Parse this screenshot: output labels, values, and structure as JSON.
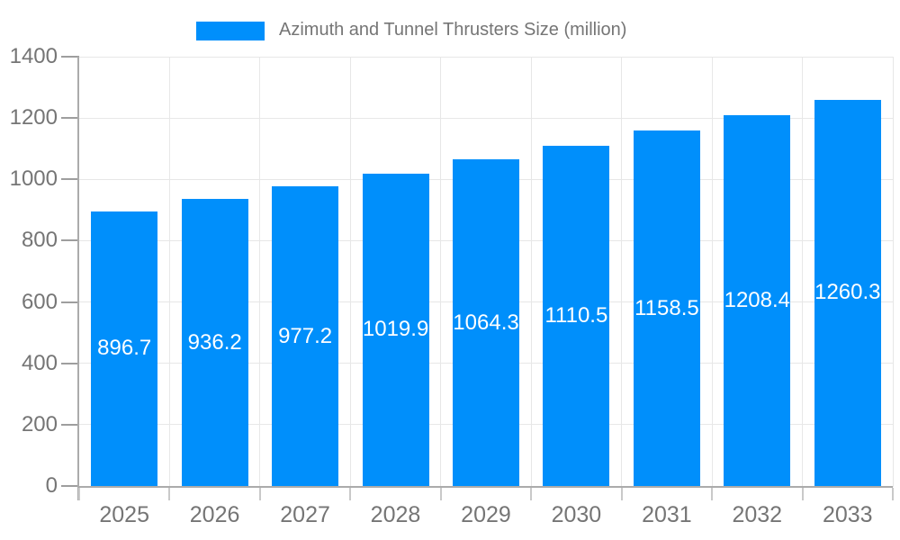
{
  "legend": {
    "label": "Azimuth and Tunnel Thrusters Size (million)"
  },
  "chart_data": {
    "type": "bar",
    "title": "Azimuth and Tunnel Thrusters Size (million)",
    "categories": [
      "2025",
      "2026",
      "2027",
      "2028",
      "2029",
      "2030",
      "2031",
      "2032",
      "2033"
    ],
    "series": [
      {
        "name": "Azimuth and Tunnel Thrusters Size (million)",
        "values": [
          896.7,
          936.2,
          977.2,
          1019.9,
          1064.3,
          1110.5,
          1158.5,
          1208.4,
          1260.3
        ]
      }
    ],
    "data_labels": [
      "896.7",
      "936.2",
      "977.2",
      "1019.9",
      "1064.3",
      "1110.5",
      "1158.5",
      "1208.4",
      "1260.3"
    ],
    "xlabel": "",
    "ylabel": "",
    "ylim": [
      0,
      1400
    ],
    "yticks": [
      0,
      200,
      400,
      600,
      800,
      1000,
      1200,
      1400
    ],
    "grid": true,
    "legend_position": "top-center",
    "colors": {
      "bar": "#008FFB",
      "data_label": "#ffffff",
      "axis_text": "#757575",
      "grid_line": "#e7e7e7",
      "axis_line": "#ababab"
    }
  }
}
